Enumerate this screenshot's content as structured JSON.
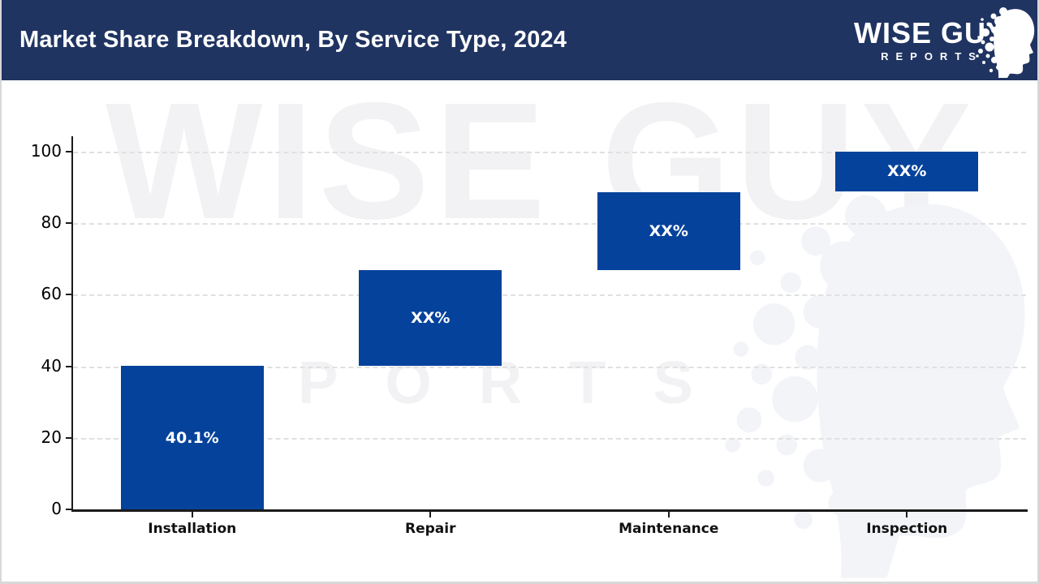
{
  "header": {
    "title": "Market Share Breakdown, By Service Type, 2024",
    "background_color": "#203462",
    "logo": {
      "line1": "WISE GUY",
      "line2": "REPORTS",
      "icon": "dotted-face-profile-icon"
    }
  },
  "watermark": {
    "line1": "WISE GUY",
    "line2": "PORTS",
    "color": "#f2f2f4"
  },
  "chart_data": {
    "type": "bar",
    "subtype": "waterfall",
    "title": "Market Share Breakdown, By Service Type, 2024",
    "xlabel": "",
    "ylabel": "",
    "categories": [
      "Installation",
      "Repair",
      "Maintenance",
      "Inspection"
    ],
    "segments": [
      {
        "category": "Installation",
        "start": 0,
        "end": 40.1,
        "label": "40.1%"
      },
      {
        "category": "Repair",
        "start": 40.1,
        "end": 67.0,
        "label": "XX%"
      },
      {
        "category": "Maintenance",
        "start": 67.0,
        "end": 88.7,
        "label": "XX%"
      },
      {
        "category": "Inspection",
        "start": 88.9,
        "end": 100,
        "label": "XX%"
      }
    ],
    "yticks": [
      0,
      20,
      40,
      60,
      80,
      100
    ],
    "ylim": [
      0,
      100
    ],
    "bar_color": "#05429B",
    "grid": true,
    "gridline_style": "dashed",
    "gridline_color": "#e0e0e0",
    "legend_position": "none"
  }
}
